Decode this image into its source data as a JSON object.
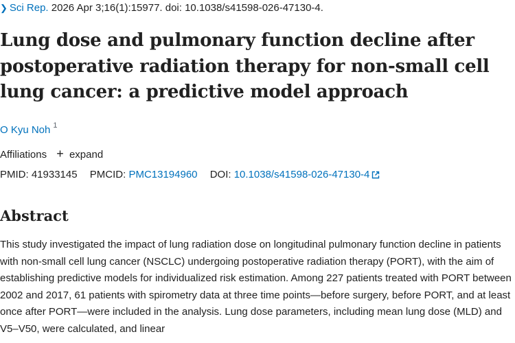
{
  "citation": {
    "journal": "Sci Rep.",
    "details": "2026 Apr 3;16(1):15977. doi: 10.1038/s41598-026-47130-4."
  },
  "title": "Lung dose and pulmonary function decline after postoperative radiation therapy for non-small cell lung cancer: a predictive model approach",
  "authors": [
    {
      "name": "O Kyu Noh",
      "affiliation_ref": "1"
    }
  ],
  "affiliations": {
    "label": "Affiliations",
    "toggle_label": "expand"
  },
  "identifiers": {
    "pmid_label": "PMID:",
    "pmid": "41933145",
    "pmcid_label": "PMCID:",
    "pmcid": "PMC13194960",
    "doi_label": "DOI:",
    "doi": "10.1038/s41598-026-47130-4"
  },
  "abstract": {
    "heading": "Abstract",
    "text": "This study investigated the impact of lung radiation dose on longitudinal pulmonary function decline in patients with non-small cell lung cancer (NSCLC) undergoing postoperative radiation therapy (PORT), with the aim of establishing predictive models for individualized risk estimation. Among 227 patients treated with PORT between 2002 and 2017, 61 patients with spirometry data at three time points—before surgery, before PORT, and at least once after PORT—were included in the analysis. Lung dose parameters, including mean lung dose (MLD) and V5–V50, were calculated, and linear"
  },
  "colors": {
    "link": "#0071bc",
    "text": "#212121"
  }
}
